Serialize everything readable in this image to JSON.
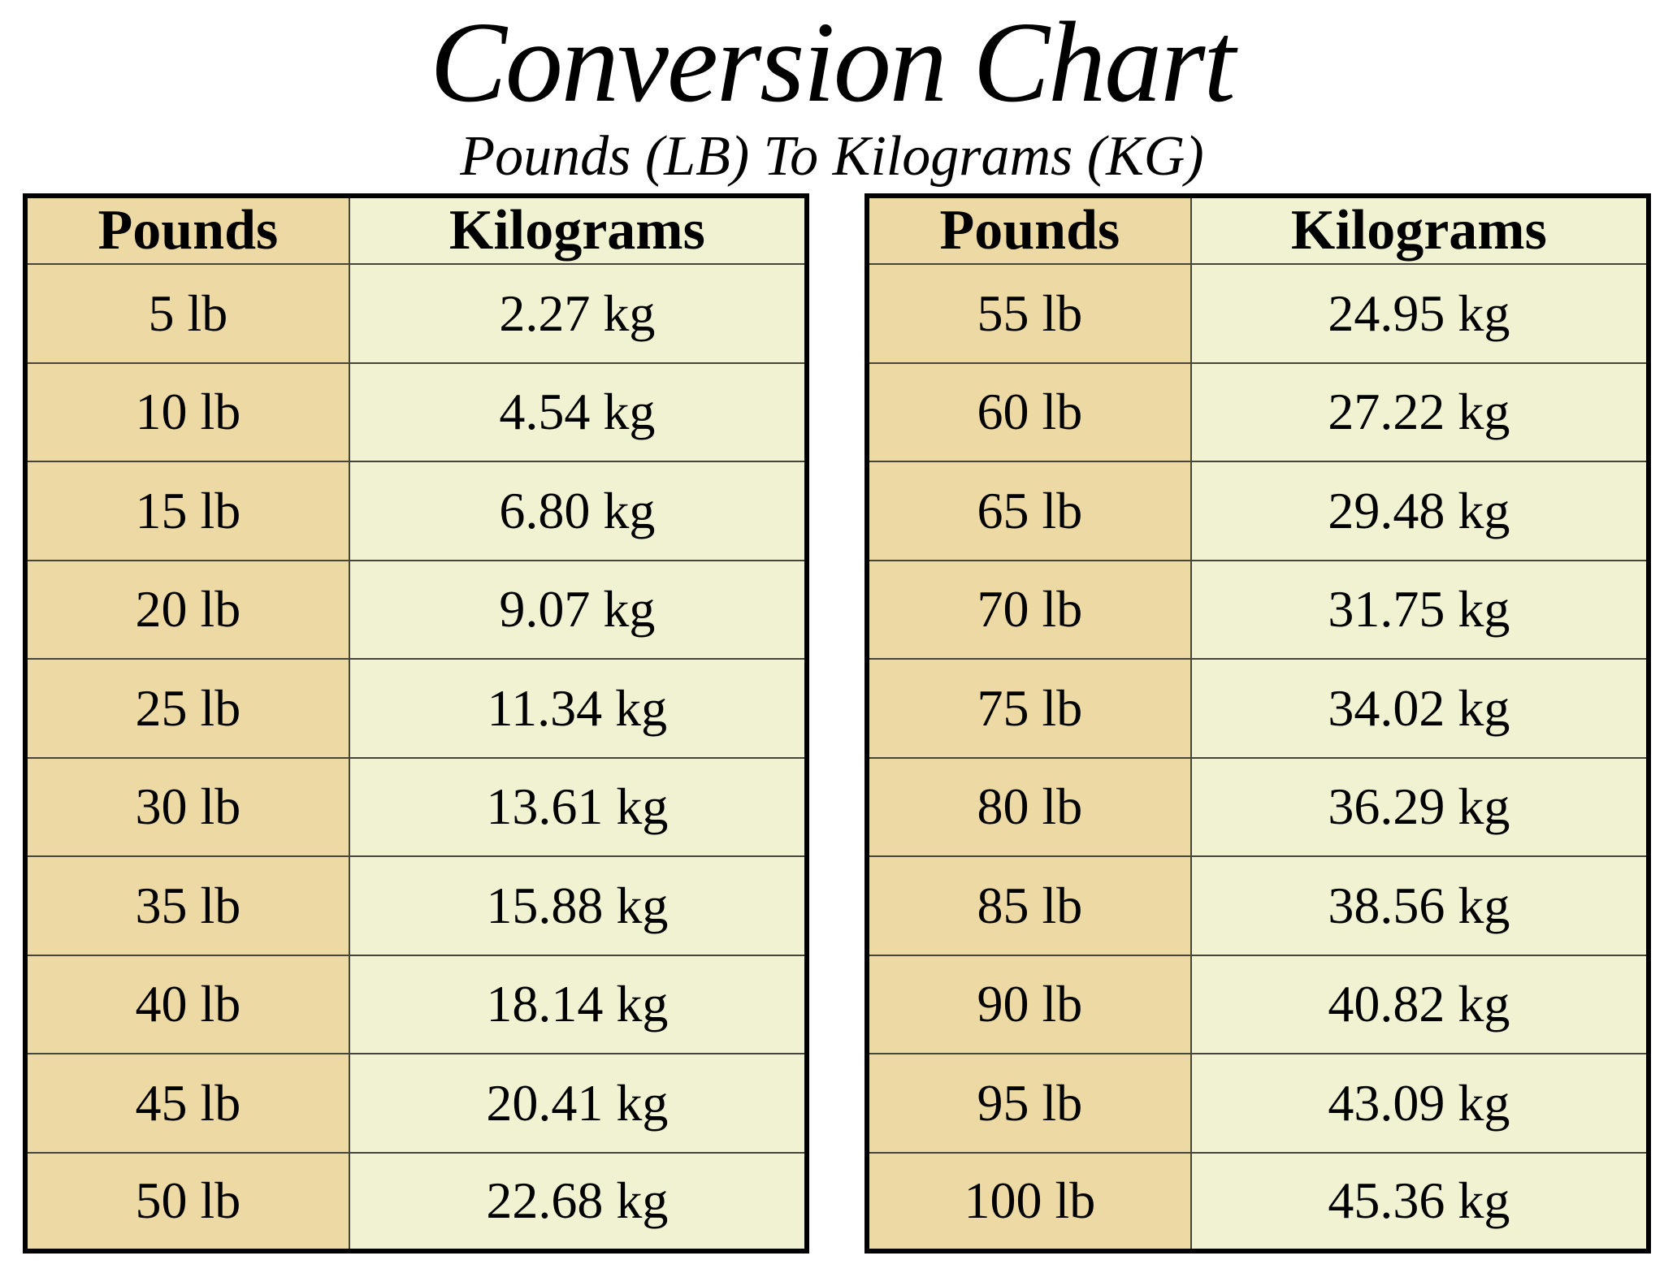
{
  "title": "Conversion Chart",
  "subtitle": "Pounds (LB) To Kilograms (KG)",
  "columns": {
    "pounds": "Pounds",
    "kilograms": "Kilograms"
  },
  "colors": {
    "pounds_column_bg": "#ecd9a3",
    "kilograms_column_bg": "#f0f2d2",
    "grid_line": "#45453a",
    "outer_border": "#000000",
    "text": "#000000",
    "page_bg": "#ffffff"
  },
  "tables": [
    {
      "rows": [
        {
          "lb": "5 lb",
          "kg": "2.27 kg"
        },
        {
          "lb": "10 lb",
          "kg": "4.54 kg"
        },
        {
          "lb": "15 lb",
          "kg": "6.80 kg"
        },
        {
          "lb": "20 lb",
          "kg": "9.07 kg"
        },
        {
          "lb": "25 lb",
          "kg": "11.34 kg"
        },
        {
          "lb": "30 lb",
          "kg": "13.61 kg"
        },
        {
          "lb": "35 lb",
          "kg": "15.88 kg"
        },
        {
          "lb": "40 lb",
          "kg": "18.14 kg"
        },
        {
          "lb": "45 lb",
          "kg": "20.41 kg"
        },
        {
          "lb": "50 lb",
          "kg": "22.68 kg"
        }
      ]
    },
    {
      "rows": [
        {
          "lb": "55 lb",
          "kg": "24.95 kg"
        },
        {
          "lb": "60 lb",
          "kg": "27.22 kg"
        },
        {
          "lb": "65 lb",
          "kg": "29.48 kg"
        },
        {
          "lb": "70 lb",
          "kg": "31.75 kg"
        },
        {
          "lb": "75 lb",
          "kg": "34.02 kg"
        },
        {
          "lb": "80 lb",
          "kg": "36.29 kg"
        },
        {
          "lb": "85 lb",
          "kg": "38.56 kg"
        },
        {
          "lb": "90 lb",
          "kg": "40.82 kg"
        },
        {
          "lb": "95 lb",
          "kg": "43.09 kg"
        },
        {
          "lb": "100 lb",
          "kg": "45.36 kg"
        }
      ]
    }
  ]
}
